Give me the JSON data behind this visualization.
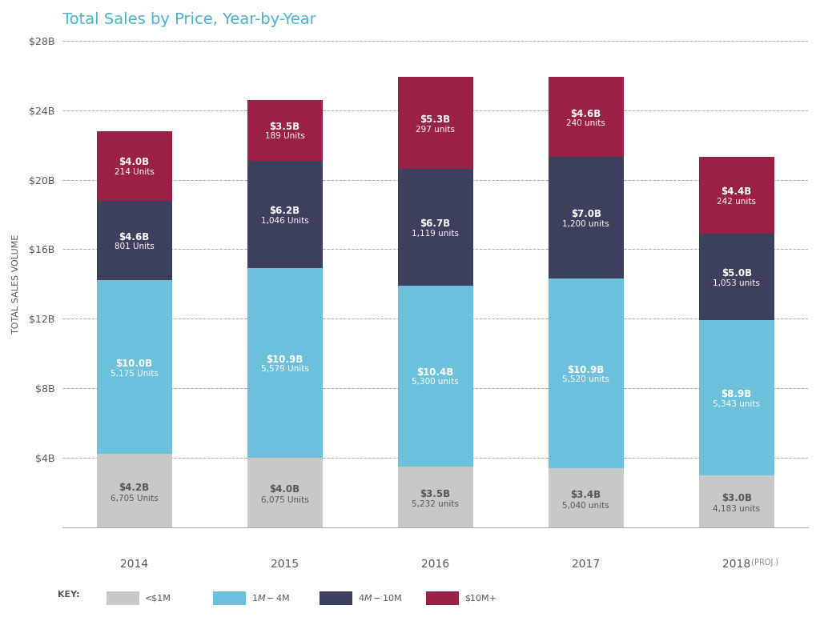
{
  "title": "Total Sales by Price, Year-by-Year",
  "title_color": "#4ab3d4",
  "ylabel": "TOTAL SALES VOLUME",
  "years": [
    "2014",
    "2015",
    "2016",
    "2017",
    "2018"
  ],
  "year_labels": [
    "2014",
    "2015",
    "2016",
    "2017",
    "2018 (PROJ.)"
  ],
  "segments": {
    "lt1m": {
      "label": "<$1M",
      "color": "#c8c8c8",
      "values": [
        4.2,
        4.0,
        3.5,
        3.4,
        3.0
      ],
      "units": [
        "6,705 Units",
        "6,075 Units",
        "5,232 units",
        "5,040 units",
        "4,183 units"
      ]
    },
    "1m_4m": {
      "label": "$1M-$4M",
      "color": "#6dc0db",
      "values": [
        10.0,
        10.9,
        10.4,
        10.9,
        8.9
      ],
      "units": [
        "5,175 Units",
        "5,579 Units",
        "5,300 units",
        "5,520 units",
        "5,343 units"
      ]
    },
    "4m_10m": {
      "label": "$4M-$10M",
      "color": "#3d3f5e",
      "values": [
        4.6,
        6.2,
        6.7,
        7.0,
        5.0
      ],
      "units": [
        "801 Units",
        "1,046 Units",
        "1,119 units",
        "1,200 units",
        "1,053 units"
      ]
    },
    "gt10m": {
      "label": "$10M+",
      "color": "#9b2045",
      "values": [
        4.0,
        3.5,
        5.3,
        4.6,
        4.4
      ],
      "units": [
        "214 Units",
        "189 Units",
        "297 units",
        "240 units",
        "242 units"
      ]
    }
  },
  "ylim": [
    0,
    28
  ],
  "yticks": [
    0,
    4,
    8,
    12,
    16,
    20,
    24,
    28
  ],
  "ytick_labels": [
    "",
    "$4B",
    "$8B",
    "$12B",
    "$16B",
    "$20B",
    "$24B",
    "$28B"
  ],
  "background_color": "#ffffff",
  "bar_width": 0.5,
  "key_labels": [
    "<$1M",
    "$1M-$4M",
    "$4M-$10M",
    "$10M+"
  ],
  "key_colors": [
    "#c8c8c8",
    "#6dc0db",
    "#3d3f5e",
    "#9b2045"
  ]
}
